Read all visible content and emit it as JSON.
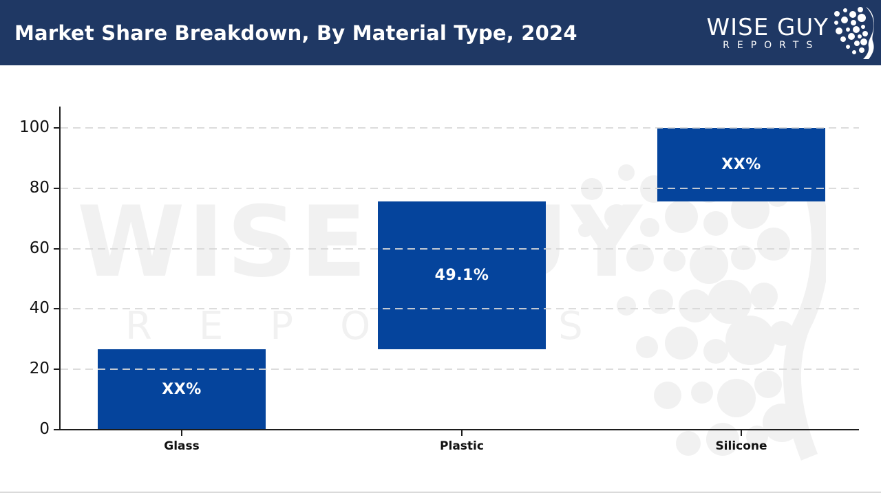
{
  "header": {
    "title": "Market Share Breakdown, By Material Type, 2024",
    "logo": {
      "name": "WISE GUY",
      "sub": "REPORTS"
    }
  },
  "watermark": {
    "line1": "WISE GUY",
    "line2": "REPORTS"
  },
  "icons": {
    "logo_face": "face-profile-dots-icon",
    "watermark_face": "face-profile-dots-icon"
  },
  "colors": {
    "header_bg": "#1f3864",
    "bar": "#05449c",
    "axis": "#1c1c1c",
    "text": "#111111",
    "bar_label": "#ffffff",
    "gridline": "#d8d8d8",
    "watermark": "#f1f1f1"
  },
  "chart_data": {
    "type": "bar",
    "variant": "waterfall-floating-bars",
    "title": "Market Share Breakdown, By Material Type, 2024",
    "categories": [
      "Glass",
      "Plastic",
      "Silicone"
    ],
    "series": [
      {
        "name": "Market share (%)",
        "segments": [
          {
            "category": "Glass",
            "start": 0,
            "end": 26.6,
            "value_label": "XX%"
          },
          {
            "category": "Plastic",
            "start": 26.6,
            "end": 75.7,
            "value_label": "49.1%"
          },
          {
            "category": "Silicone",
            "start": 75.7,
            "end": 100,
            "value_label": "XX%"
          }
        ]
      }
    ],
    "xlabel": "",
    "ylabel": "",
    "ylim": [
      0,
      107
    ],
    "yticks": [
      0,
      20,
      40,
      60,
      80,
      100
    ],
    "grid": {
      "horizontal": true,
      "style": "dashed",
      "over_bars": true
    },
    "legend": null
  }
}
